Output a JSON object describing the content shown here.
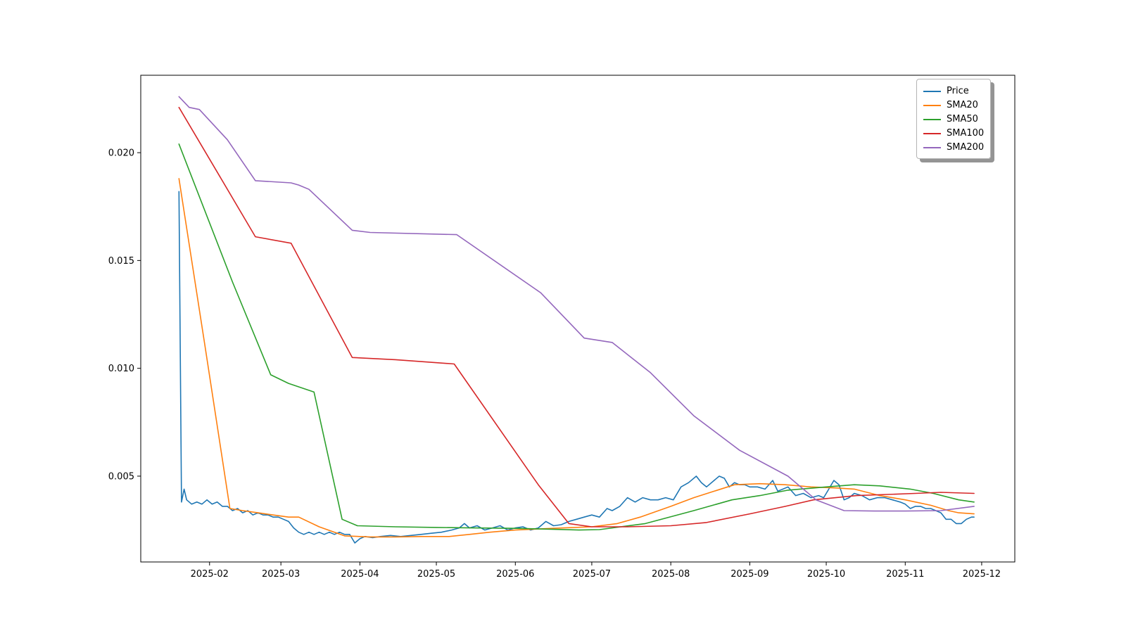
{
  "figure": {
    "background": "#ffffff",
    "plot_border_color": "#000000",
    "tick_color": "#000000",
    "text_color": "#000000"
  },
  "legend": {
    "position": "upper right",
    "border_color": "#b4b4b4",
    "shadow": true
  },
  "chart_data": {
    "type": "line",
    "title": "",
    "xlabel": "",
    "ylabel": "",
    "grid": false,
    "legend_position": "upper right",
    "x_tick_labels": [
      "2025-02",
      "2025-03",
      "2025-04",
      "2025-05",
      "2025-06",
      "2025-07",
      "2025-08",
      "2025-09",
      "2025-10",
      "2025-11",
      "2025-12"
    ],
    "y_ticks": [
      0.005,
      0.01,
      0.015,
      0.02
    ],
    "y_tick_labels": [
      "0.005",
      "0.010",
      "0.015",
      "0.020"
    ],
    "xlim": [
      "2025-01-05",
      "2025-12-14"
    ],
    "ylim": [
      0.00102,
      0.02359
    ],
    "line_width": 1.6,
    "series": [
      {
        "name": "Price",
        "color": "#1f77b4",
        "points": [
          [
            "01-20",
            0.0182
          ],
          [
            "01-21",
            0.0038
          ],
          [
            "01-22",
            0.0044
          ],
          [
            "01-23",
            0.0039
          ],
          [
            "01-25",
            0.0037
          ],
          [
            "01-27",
            0.0038
          ],
          [
            "01-29",
            0.0037
          ],
          [
            "01-31",
            0.0039
          ],
          [
            "02-02",
            0.0037
          ],
          [
            "02-04",
            0.0038
          ],
          [
            "02-06",
            0.0036
          ],
          [
            "02-08",
            0.0036
          ],
          [
            "02-10",
            0.0034
          ],
          [
            "02-12",
            0.0035
          ],
          [
            "02-14",
            0.0033
          ],
          [
            "02-16",
            0.0034
          ],
          [
            "02-18",
            0.0032
          ],
          [
            "02-20",
            0.0033
          ],
          [
            "02-22",
            0.0032
          ],
          [
            "02-24",
            0.0032
          ],
          [
            "02-26",
            0.0031
          ],
          [
            "02-28",
            0.0031
          ],
          [
            "03-02",
            0.003
          ],
          [
            "03-04",
            0.0029
          ],
          [
            "03-06",
            0.0026
          ],
          [
            "03-08",
            0.0024
          ],
          [
            "03-10",
            0.0023
          ],
          [
            "03-12",
            0.0024
          ],
          [
            "03-14",
            0.0023
          ],
          [
            "03-16",
            0.0024
          ],
          [
            "03-18",
            0.0023
          ],
          [
            "03-20",
            0.0024
          ],
          [
            "03-22",
            0.0023
          ],
          [
            "03-24",
            0.0024
          ],
          [
            "03-26",
            0.0023
          ],
          [
            "03-28",
            0.0023
          ],
          [
            "03-30",
            0.0019
          ],
          [
            "04-01",
            0.0021
          ],
          [
            "04-03",
            0.0022
          ],
          [
            "04-06",
            0.00215
          ],
          [
            "04-09",
            0.0022
          ],
          [
            "04-13",
            0.00225
          ],
          [
            "04-17",
            0.0022
          ],
          [
            "04-21",
            0.00225
          ],
          [
            "04-25",
            0.0023
          ],
          [
            "04-29",
            0.00235
          ],
          [
            "05-03",
            0.0024
          ],
          [
            "05-07",
            0.0025
          ],
          [
            "05-10",
            0.0026
          ],
          [
            "05-12",
            0.0028
          ],
          [
            "05-14",
            0.0026
          ],
          [
            "05-17",
            0.0027
          ],
          [
            "05-20",
            0.0025
          ],
          [
            "05-23",
            0.0026
          ],
          [
            "05-26",
            0.0027
          ],
          [
            "05-29",
            0.0025
          ],
          [
            "06-01",
            0.0026
          ],
          [
            "06-04",
            0.00265
          ],
          [
            "06-07",
            0.0025
          ],
          [
            "06-10",
            0.0026
          ],
          [
            "06-13",
            0.0029
          ],
          [
            "06-16",
            0.0027
          ],
          [
            "06-19",
            0.00275
          ],
          [
            "06-22",
            0.0029
          ],
          [
            "06-25",
            0.003
          ],
          [
            "06-28",
            0.0031
          ],
          [
            "07-01",
            0.0032
          ],
          [
            "07-04",
            0.0031
          ],
          [
            "07-07",
            0.0035
          ],
          [
            "07-09",
            0.0034
          ],
          [
            "07-12",
            0.0036
          ],
          [
            "07-15",
            0.004
          ],
          [
            "07-18",
            0.0038
          ],
          [
            "07-21",
            0.004
          ],
          [
            "07-24",
            0.0039
          ],
          [
            "07-27",
            0.0039
          ],
          [
            "07-30",
            0.004
          ],
          [
            "08-02",
            0.0039
          ],
          [
            "08-05",
            0.0045
          ],
          [
            "08-08",
            0.0047
          ],
          [
            "08-11",
            0.005
          ],
          [
            "08-13",
            0.0047
          ],
          [
            "08-15",
            0.0045
          ],
          [
            "08-18",
            0.0048
          ],
          [
            "08-20",
            0.005
          ],
          [
            "08-22",
            0.0049
          ],
          [
            "08-24",
            0.0045
          ],
          [
            "08-26",
            0.0047
          ],
          [
            "08-28",
            0.0046
          ],
          [
            "08-30",
            0.0046
          ],
          [
            "09-01",
            0.0045
          ],
          [
            "09-04",
            0.0045
          ],
          [
            "09-07",
            0.0044
          ],
          [
            "09-10",
            0.0048
          ],
          [
            "09-12",
            0.0043
          ],
          [
            "09-14",
            0.0044
          ],
          [
            "09-16",
            0.0045
          ],
          [
            "09-19",
            0.0041
          ],
          [
            "09-22",
            0.0042
          ],
          [
            "09-25",
            0.004
          ],
          [
            "09-28",
            0.0041
          ],
          [
            "09-30",
            0.004
          ],
          [
            "10-02",
            0.0044
          ],
          [
            "10-04",
            0.0048
          ],
          [
            "10-06",
            0.0046
          ],
          [
            "10-08",
            0.0039
          ],
          [
            "10-10",
            0.004
          ],
          [
            "10-12",
            0.0042
          ],
          [
            "10-15",
            0.0041
          ],
          [
            "10-18",
            0.0039
          ],
          [
            "10-21",
            0.004
          ],
          [
            "10-24",
            0.004
          ],
          [
            "10-27",
            0.0039
          ],
          [
            "10-30",
            0.0038
          ],
          [
            "11-01",
            0.0037
          ],
          [
            "11-03",
            0.0035
          ],
          [
            "11-05",
            0.0036
          ],
          [
            "11-07",
            0.0036
          ],
          [
            "11-09",
            0.0035
          ],
          [
            "11-11",
            0.0035
          ],
          [
            "11-13",
            0.0034
          ],
          [
            "11-15",
            0.0033
          ],
          [
            "11-17",
            0.003
          ],
          [
            "11-19",
            0.003
          ],
          [
            "11-21",
            0.0028
          ],
          [
            "11-23",
            0.0028
          ],
          [
            "11-25",
            0.003
          ],
          [
            "11-27",
            0.0031
          ],
          [
            "11-28",
            0.0031
          ]
        ]
      },
      {
        "name": "SMA20",
        "color": "#ff7f0e",
        "points": [
          [
            "01-20",
            0.0188
          ],
          [
            "01-30",
            0.0112
          ],
          [
            "02-09",
            0.0035
          ],
          [
            "02-14",
            0.0034
          ],
          [
            "02-20",
            0.0033
          ],
          [
            "02-26",
            0.0032
          ],
          [
            "03-04",
            0.0031
          ],
          [
            "03-08",
            0.0031
          ],
          [
            "03-16",
            0.00265
          ],
          [
            "03-26",
            0.00223
          ],
          [
            "04-05",
            0.00218
          ],
          [
            "04-15",
            0.00218
          ],
          [
            "04-25",
            0.0022
          ],
          [
            "05-06",
            0.0022
          ],
          [
            "05-14",
            0.0023
          ],
          [
            "05-22",
            0.0024
          ],
          [
            "06-01",
            0.0025
          ],
          [
            "06-10",
            0.00255
          ],
          [
            "06-20",
            0.0026
          ],
          [
            "07-01",
            0.00265
          ],
          [
            "07-11",
            0.0028
          ],
          [
            "07-20",
            0.0031
          ],
          [
            "08-01",
            0.0036
          ],
          [
            "08-10",
            0.004
          ],
          [
            "08-18",
            0.0043
          ],
          [
            "08-26",
            0.0046
          ],
          [
            "09-05",
            0.00465
          ],
          [
            "09-15",
            0.0046
          ],
          [
            "09-25",
            0.0045
          ],
          [
            "10-05",
            0.00445
          ],
          [
            "10-12",
            0.0044
          ],
          [
            "10-22",
            0.0041
          ],
          [
            "11-01",
            0.0039
          ],
          [
            "11-11",
            0.00365
          ],
          [
            "11-18",
            0.0034
          ],
          [
            "11-22",
            0.0033
          ],
          [
            "11-28",
            0.00325
          ]
        ]
      },
      {
        "name": "SMA50",
        "color": "#2ca02c",
        "points": [
          [
            "01-20",
            0.0204
          ],
          [
            "02-10",
            0.014
          ],
          [
            "02-25",
            0.0097
          ],
          [
            "03-04",
            0.0093
          ],
          [
            "03-14",
            0.0089
          ],
          [
            "03-25",
            0.003
          ],
          [
            "03-31",
            0.0027
          ],
          [
            "04-15",
            0.00265
          ],
          [
            "05-01",
            0.00262
          ],
          [
            "05-15",
            0.0026
          ],
          [
            "06-01",
            0.00258
          ],
          [
            "06-15",
            0.00254
          ],
          [
            "06-26",
            0.0025
          ],
          [
            "07-04",
            0.00252
          ],
          [
            "07-22",
            0.0028
          ],
          [
            "08-10",
            0.0034
          ],
          [
            "08-25",
            0.0039
          ],
          [
            "09-05",
            0.0041
          ],
          [
            "09-16",
            0.00435
          ],
          [
            "10-01",
            0.0045
          ],
          [
            "10-12",
            0.0046
          ],
          [
            "10-22",
            0.00455
          ],
          [
            "11-03",
            0.0044
          ],
          [
            "11-12",
            0.0042
          ],
          [
            "11-22",
            0.0039
          ],
          [
            "11-28",
            0.0038
          ]
        ]
      },
      {
        "name": "SMA100",
        "color": "#d62728",
        "points": [
          [
            "01-20",
            0.0221
          ],
          [
            "02-05",
            0.0189
          ],
          [
            "02-19",
            0.0161
          ],
          [
            "03-05",
            0.0158
          ],
          [
            "03-29",
            0.0105
          ],
          [
            "04-15",
            0.0104
          ],
          [
            "05-08",
            0.0102
          ],
          [
            "06-10",
            0.0046
          ],
          [
            "06-22",
            0.0028
          ],
          [
            "07-01",
            0.00265
          ],
          [
            "07-15",
            0.00265
          ],
          [
            "08-01",
            0.0027
          ],
          [
            "08-15",
            0.00285
          ],
          [
            "09-01",
            0.00325
          ],
          [
            "09-15",
            0.0036
          ],
          [
            "09-26",
            0.0039
          ],
          [
            "10-13",
            0.0041
          ],
          [
            "10-25",
            0.00415
          ],
          [
            "11-05",
            0.0042
          ],
          [
            "11-15",
            0.00425
          ],
          [
            "11-28",
            0.0042
          ]
        ]
      },
      {
        "name": "SMA200",
        "color": "#9467bd",
        "points": [
          [
            "01-20",
            0.0226
          ],
          [
            "01-24",
            0.0221
          ],
          [
            "01-28",
            0.022
          ],
          [
            "02-08",
            0.0206
          ],
          [
            "02-19",
            0.0187
          ],
          [
            "03-05",
            0.0186
          ],
          [
            "03-08",
            0.0185
          ],
          [
            "03-12",
            0.0183
          ],
          [
            "03-29",
            0.0164
          ],
          [
            "04-05",
            0.0163
          ],
          [
            "05-09",
            0.0162
          ],
          [
            "06-11",
            0.0135
          ],
          [
            "06-28",
            0.0114
          ],
          [
            "07-09",
            0.0112
          ],
          [
            "07-24",
            0.0098
          ],
          [
            "08-10",
            0.0078
          ],
          [
            "08-28",
            0.0062
          ],
          [
            "09-16",
            0.005
          ],
          [
            "09-27",
            0.0039
          ],
          [
            "10-08",
            0.0034
          ],
          [
            "10-20",
            0.00338
          ],
          [
            "11-01",
            0.00338
          ],
          [
            "11-15",
            0.0034
          ],
          [
            "11-28",
            0.0036
          ]
        ]
      }
    ]
  }
}
